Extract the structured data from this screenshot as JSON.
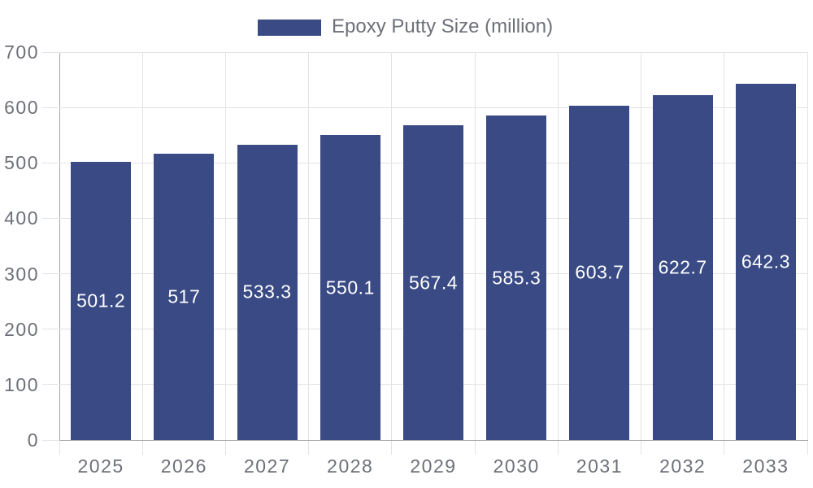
{
  "legend": {
    "label": "Epoxy Putty Size (million)"
  },
  "colors": {
    "bar": "#394A84",
    "text": "#6E7079",
    "grid": "#E3E3E3",
    "axis_line": "#A6A6A6",
    "bar_label": "#FFFFFF",
    "background": "#FFFFFF"
  },
  "chart_data": {
    "type": "bar",
    "title": "",
    "series": [
      {
        "name": "Epoxy Putty Size (million)",
        "values": [
          501.2,
          517,
          533.3,
          550.1,
          567.4,
          585.3,
          603.7,
          622.7,
          642.3
        ],
        "value_labels": [
          "501.2",
          "517",
          "533.3",
          "550.1",
          "567.4",
          "585.3",
          "603.7",
          "622.7",
          "642.3"
        ]
      }
    ],
    "categories": [
      "2025",
      "2026",
      "2027",
      "2028",
      "2029",
      "2030",
      "2031",
      "2032",
      "2033"
    ],
    "xlabel": "",
    "ylabel": "",
    "ylim": [
      0,
      700
    ],
    "yticks": [
      0,
      100,
      200,
      300,
      400,
      500,
      600,
      700
    ],
    "grid": true,
    "legend_position": "top",
    "value_label_position": "inside-center"
  }
}
